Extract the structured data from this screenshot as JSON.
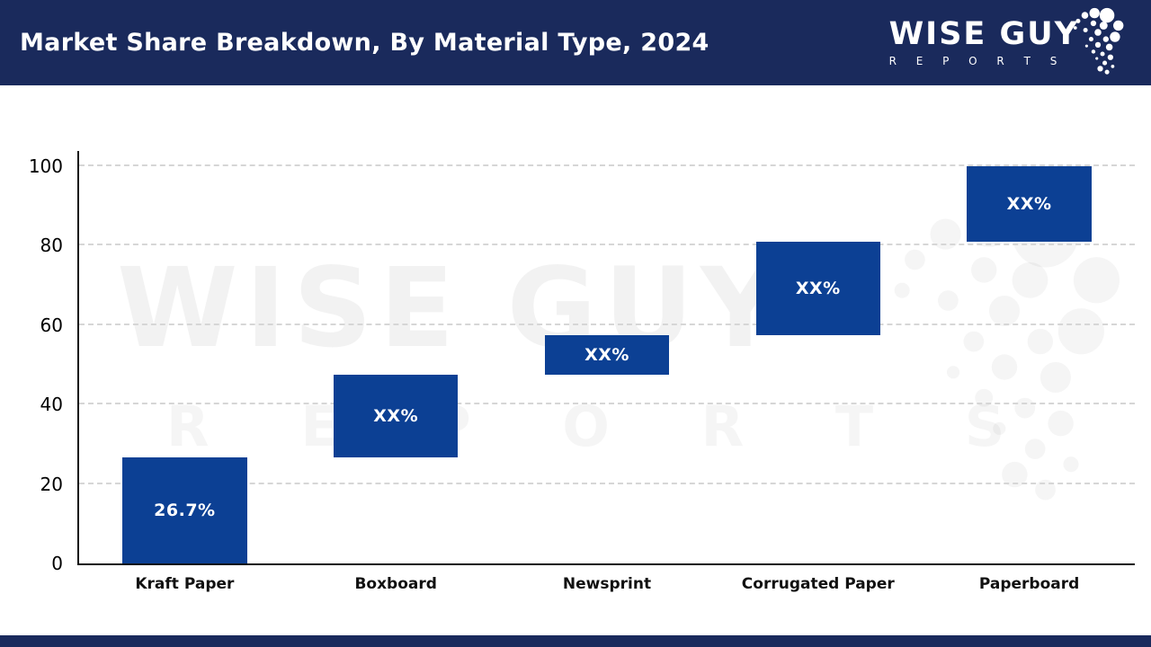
{
  "header": {
    "title": "Market Share Breakdown, By Material Type, 2024",
    "logo": {
      "line1": "WISE GUY",
      "line2": "R E P O R T S"
    }
  },
  "watermark": {
    "line1": "WISE GUY",
    "line2": "R E P O R T S"
  },
  "colors": {
    "header_bg": "#1a2a5c",
    "footer_bg": "#1a2a5c",
    "bar": "#0c4094",
    "bar_label": "#ffffff",
    "axis": "#111111",
    "gridline": "#d6d6d6",
    "tick_label": "#000000",
    "category_label": "#111111"
  },
  "chart_data": {
    "type": "bar",
    "subtype": "waterfall",
    "title": "Market Share Breakdown, By Material Type, 2024",
    "categories": [
      "Kraft Paper",
      "Boxboard",
      "Newsprint",
      "Corrugated Paper",
      "Paperboard"
    ],
    "segments": [
      {
        "category": "Kraft Paper",
        "start": 0,
        "end": 26.7,
        "value": 26.7,
        "label": "26.7%"
      },
      {
        "category": "Boxboard",
        "start": 26.7,
        "end": 47.5,
        "value": 20.8,
        "label": "XX%"
      },
      {
        "category": "Newsprint",
        "start": 47.5,
        "end": 57.5,
        "value": 10.0,
        "label": "XX%"
      },
      {
        "category": "Corrugated Paper",
        "start": 57.5,
        "end": 81.0,
        "value": 23.5,
        "label": "XX%"
      },
      {
        "category": "Paperboard",
        "start": 81.0,
        "end": 100.0,
        "value": 19.0,
        "label": "XX%"
      }
    ],
    "xlabel": "",
    "ylabel": "",
    "ylim": [
      0,
      100
    ],
    "yticks": [
      0,
      20,
      40,
      60,
      80,
      100
    ],
    "grid": true,
    "legend": false
  }
}
